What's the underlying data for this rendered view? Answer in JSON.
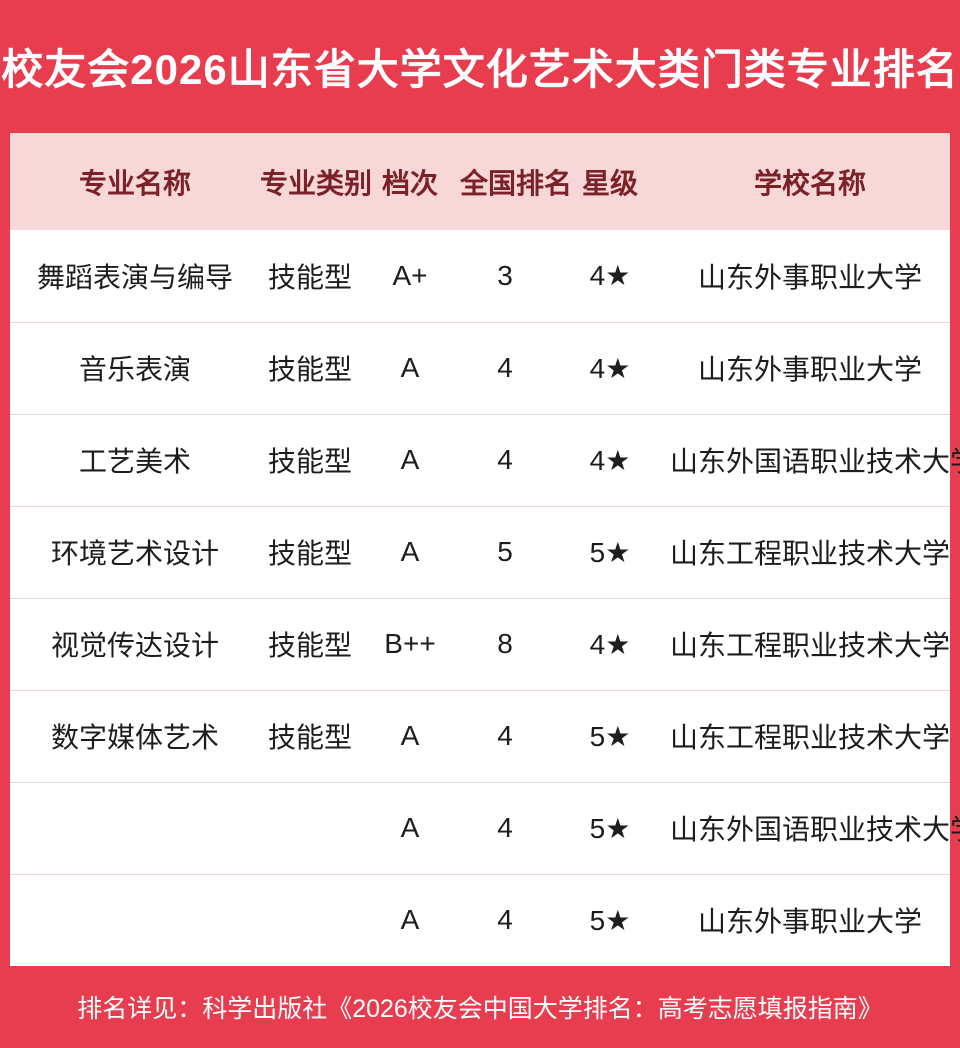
{
  "title": "校友会2026山东省大学文化艺术大类门类专业排名",
  "colors": {
    "accent_red": "#e83c4f",
    "header_pink": "#f7d7d7",
    "header_text": "#7a2129",
    "body_text": "#1d1d1d",
    "divider": "#f2d2d5"
  },
  "table": {
    "columns": [
      "专业名称",
      "专业类别",
      "档次",
      "全国排名",
      "星级",
      "学校名称"
    ],
    "rows": [
      [
        "舞蹈表演与编导",
        "技能型",
        "A+",
        "3",
        "4★",
        "山东外事职业大学"
      ],
      [
        "音乐表演",
        "技能型",
        "A",
        "4",
        "4★",
        "山东外事职业大学"
      ],
      [
        "工艺美术",
        "技能型",
        "A",
        "4",
        "4★",
        "山东外国语职业技术大学"
      ],
      [
        "环境艺术设计",
        "技能型",
        "A",
        "5",
        "5★",
        "山东工程职业技术大学"
      ],
      [
        "视觉传达设计",
        "技能型",
        "B++",
        "8",
        "4★",
        "山东工程职业技术大学"
      ],
      [
        "数字媒体艺术",
        "技能型",
        "A",
        "4",
        "5★",
        "山东工程职业技术大学"
      ],
      [
        "",
        "",
        "A",
        "4",
        "5★",
        "山东外国语职业技术大学"
      ],
      [
        "",
        "",
        "A",
        "4",
        "5★",
        "山东外事职业大学"
      ]
    ]
  },
  "footer_note": "排名详见：科学出版社《2026校友会中国大学排名：高考志愿填报指南》"
}
